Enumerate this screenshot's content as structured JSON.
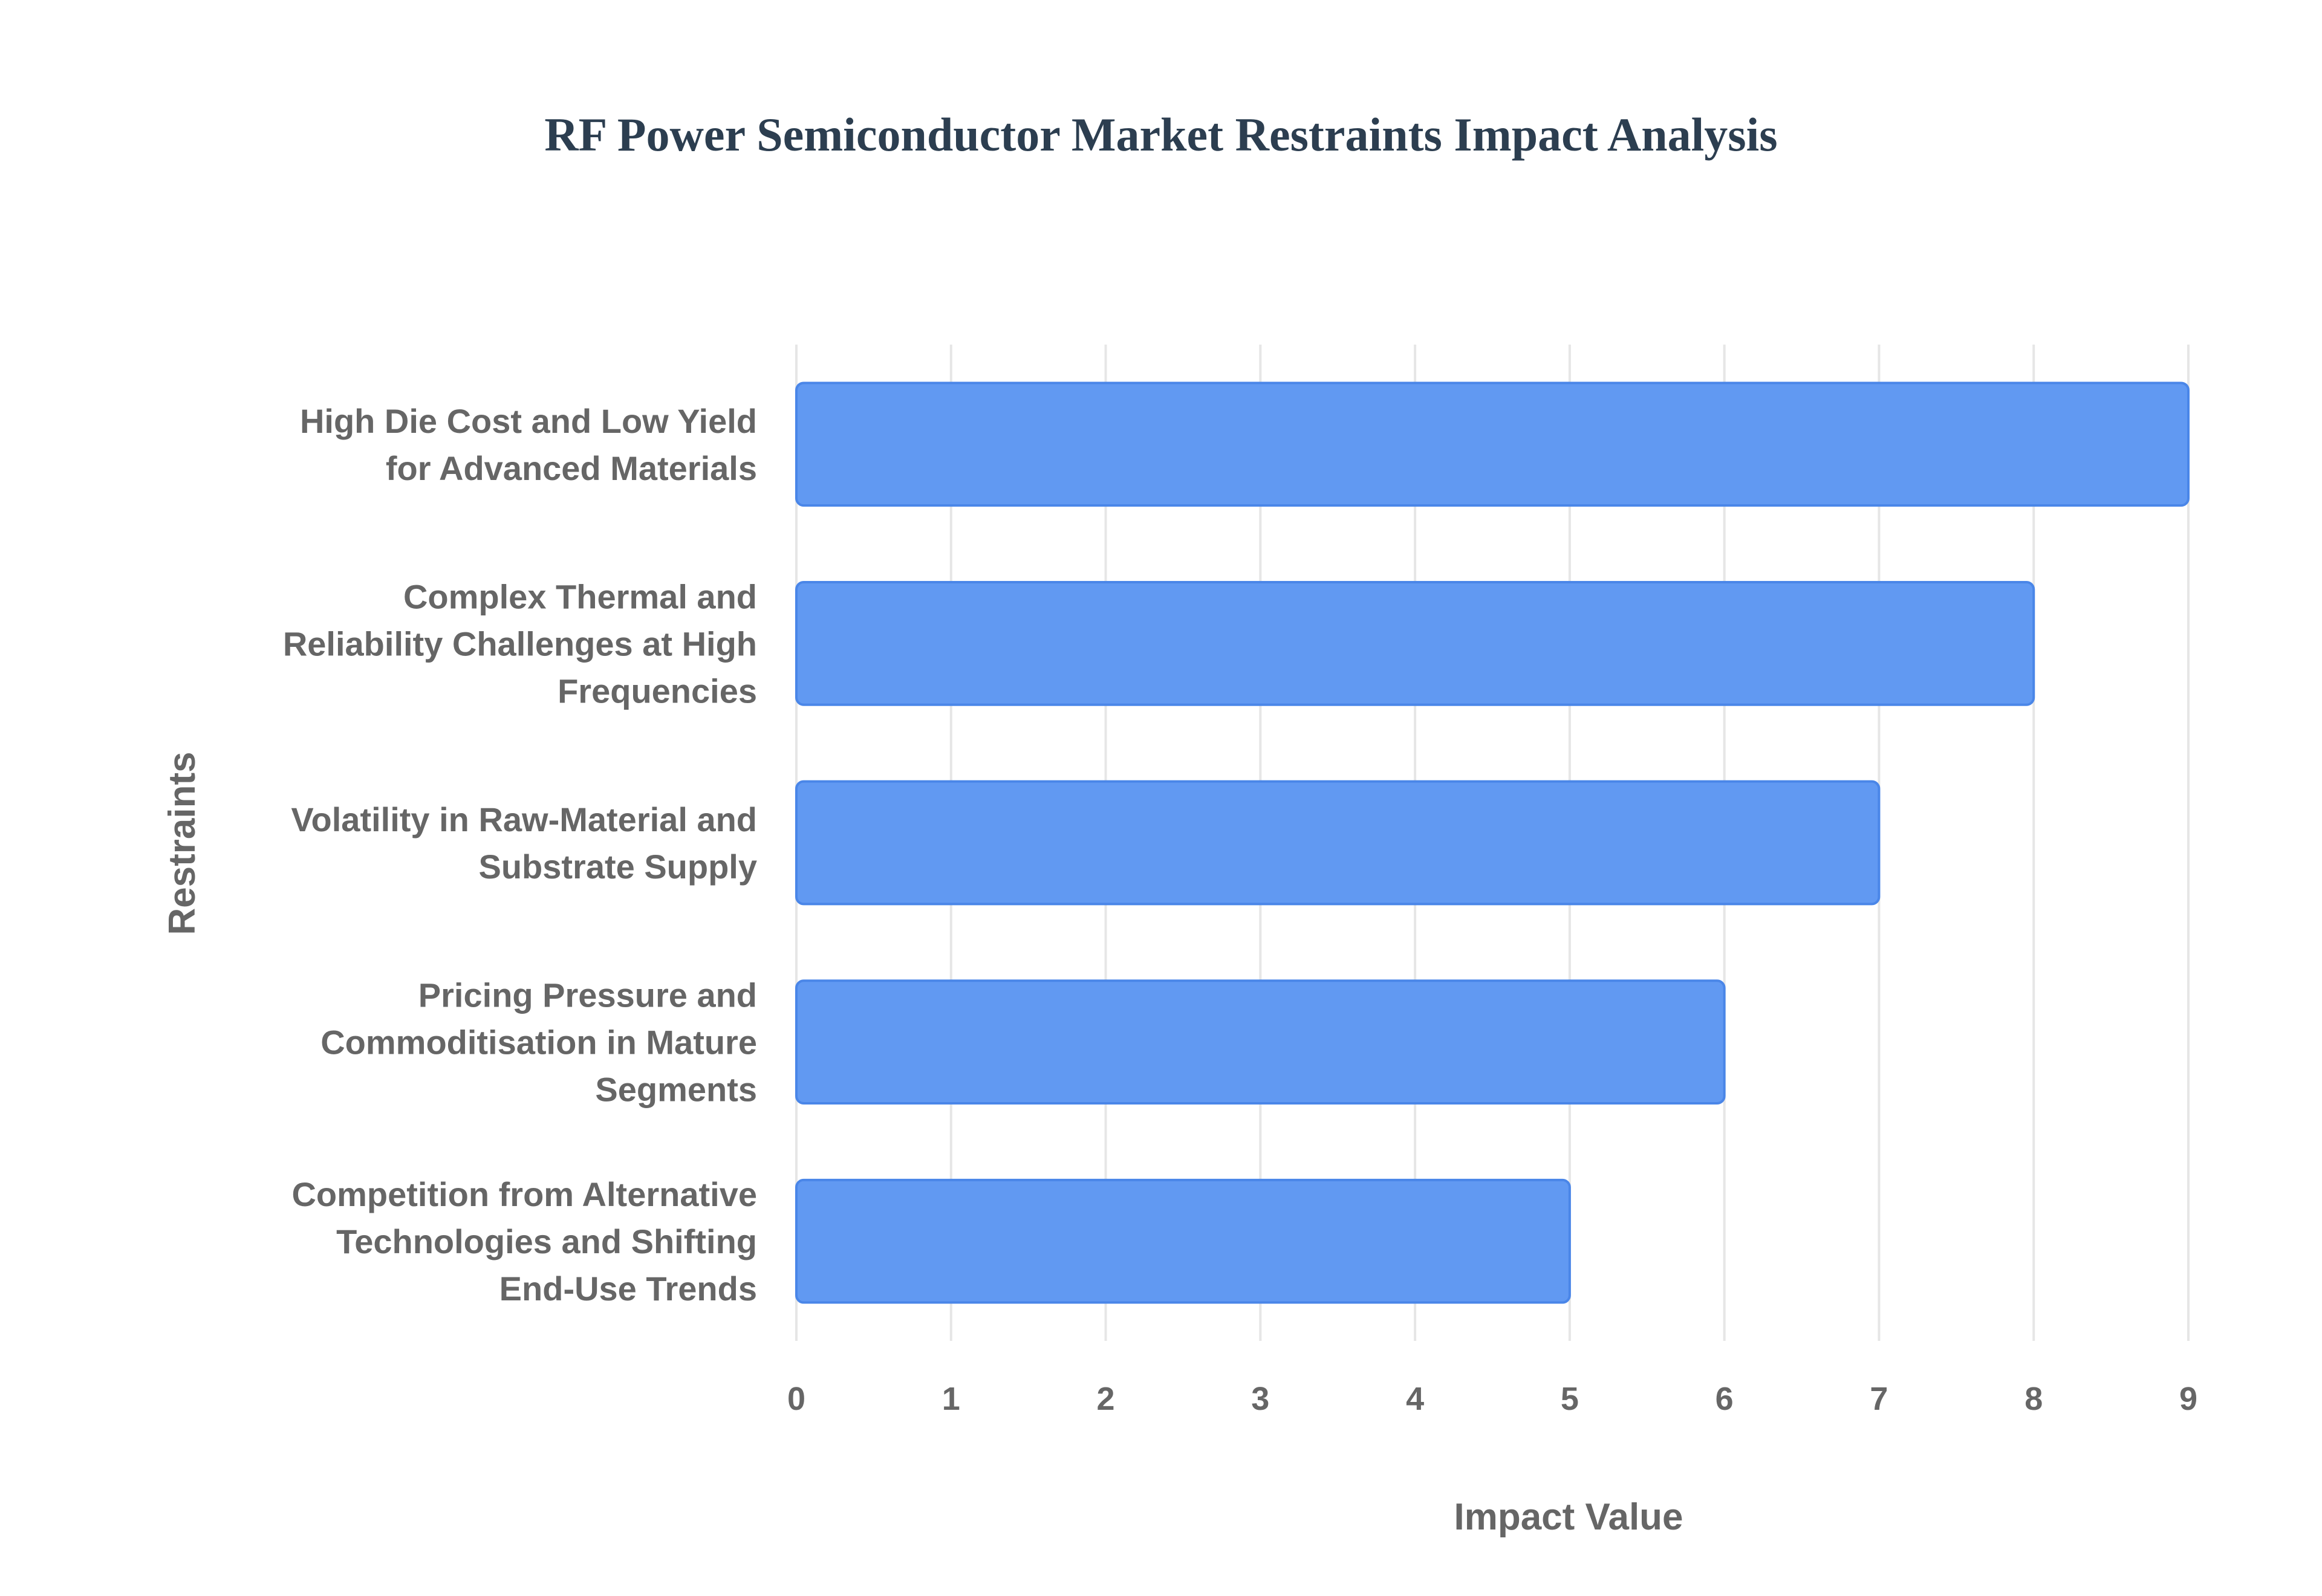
{
  "chart_data": {
    "type": "bar",
    "orientation": "horizontal",
    "title": "RF Power Semiconductor Market Restraints Impact Analysis",
    "xlabel": "Impact Value",
    "ylabel": "Restraints",
    "categories": [
      [
        "High Die Cost and Low Yield",
        "for Advanced Materials"
      ],
      [
        "Complex Thermal and",
        "Reliability Challenges at High",
        "Frequencies"
      ],
      [
        "Volatility in Raw-Material and",
        "Substrate Supply"
      ],
      [
        "Pricing Pressure and",
        "Commoditisation in Mature",
        "Segments"
      ],
      [
        "Competition from Alternative",
        "Technologies and Shifting",
        "End-Use Trends"
      ]
    ],
    "values": [
      9,
      8,
      7,
      6,
      5
    ],
    "xlim": [
      0,
      9
    ],
    "xticks": [
      "0",
      "1",
      "2",
      "3",
      "4",
      "5",
      "6",
      "7",
      "8",
      "9"
    ],
    "grid": true,
    "bar_color": "#6199f2",
    "bar_border_color": "#4a86e8",
    "grid_color": "#e6e6e6",
    "text_color": "#666666",
    "title_color": "#2c3e50"
  }
}
